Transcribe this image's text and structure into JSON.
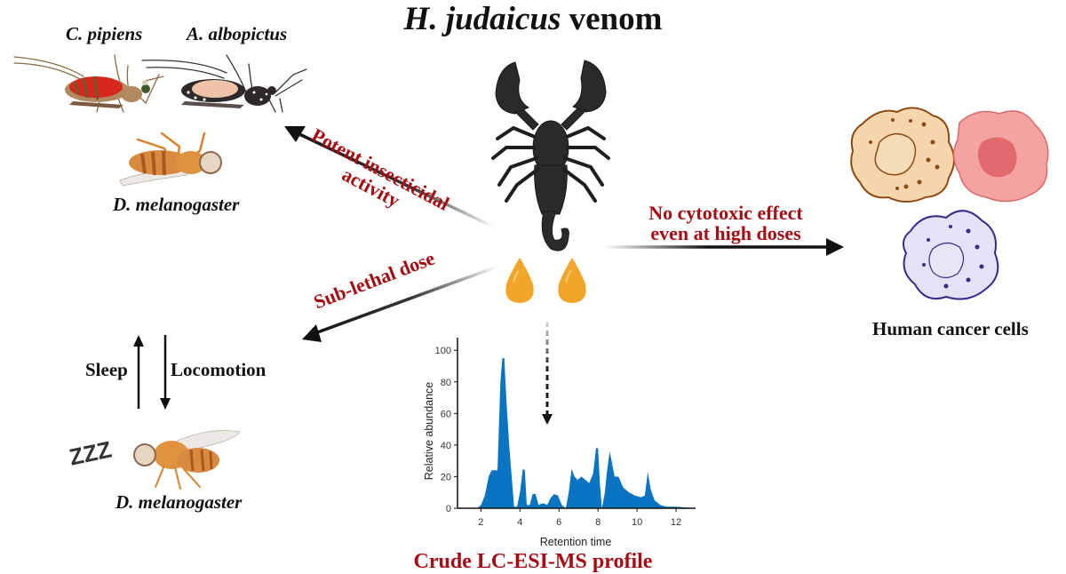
{
  "title": {
    "italic": "H. judaicus",
    "rest": " venom"
  },
  "left_top": {
    "species": [
      {
        "label": "C. pipiens",
        "icon": "mosquito-culex-icon"
      },
      {
        "label": "A. albopictus",
        "icon": "mosquito-aedes-icon"
      }
    ],
    "fly_label": "D. melanogaster",
    "arrow_label_line1": "Potent insecticidal",
    "arrow_label_line2": "activity"
  },
  "left_bottom": {
    "arrow_label": "Sub-lethal dose",
    "up_label": "Sleep",
    "down_label": "Locomotion",
    "fly_label": "D. melanogaster",
    "sleep_glyph": "ZZZ"
  },
  "right": {
    "arrow_label_line1": "No cytotoxic effect",
    "arrow_label_line2": "even at high doses",
    "cells_label": "Human cancer cells"
  },
  "center": {
    "organism": "scorpion-icon",
    "drops": [
      "venom-drop-icon",
      "venom-drop-icon"
    ]
  },
  "bottom_caption_partial": "Crude LC-ESI-MS profile",
  "colors": {
    "accent_red": "#a50d12",
    "chart_blue": "#0a74c2",
    "drop_orange": "#f2a52b",
    "text_black": "#111111"
  },
  "chart_data": {
    "type": "area",
    "title": "",
    "xlabel": "Retention time",
    "ylabel": "Relative abundance",
    "xlim": [
      0.8,
      13
    ],
    "ylim": [
      0,
      108
    ],
    "xticks": [
      2,
      4,
      6,
      8,
      10,
      12
    ],
    "yticks": [
      0,
      20,
      40,
      60,
      80,
      100
    ],
    "grid": false,
    "legend": null,
    "series": [
      {
        "name": "Relative abundance",
        "x": [
          0.8,
          1.8,
          2.0,
          2.2,
          2.4,
          2.55,
          2.7,
          2.85,
          3.0,
          3.1,
          3.2,
          3.3,
          3.45,
          3.7,
          3.85,
          4.0,
          4.15,
          4.25,
          4.35,
          4.5,
          4.65,
          4.8,
          4.95,
          5.1,
          5.25,
          5.4,
          5.55,
          5.75,
          5.95,
          6.15,
          6.35,
          6.5,
          6.65,
          6.8,
          6.95,
          7.15,
          7.35,
          7.55,
          7.75,
          7.9,
          8.0,
          8.1,
          8.2,
          8.35,
          8.45,
          8.6,
          8.7,
          8.85,
          9.05,
          9.3,
          9.6,
          9.9,
          10.2,
          10.4,
          10.55,
          10.7,
          10.9,
          11.2,
          11.5,
          12.0,
          13.0
        ],
        "y": [
          0,
          0,
          2,
          8,
          20,
          24,
          24,
          24,
          80,
          95,
          95,
          70,
          40,
          1,
          1,
          10,
          25,
          24,
          2,
          2,
          9,
          9,
          2,
          3,
          3,
          2,
          6,
          9,
          8,
          2,
          0,
          10,
          25,
          20,
          18,
          20,
          18,
          16,
          22,
          38,
          38,
          15,
          0,
          10,
          22,
          36,
          30,
          20,
          20,
          13,
          10,
          8,
          7,
          8,
          23,
          12,
          5,
          2,
          1,
          1,
          0
        ]
      }
    ],
    "annotations": [
      "dashed arrow from venom drops pointing into chromatogram"
    ]
  }
}
